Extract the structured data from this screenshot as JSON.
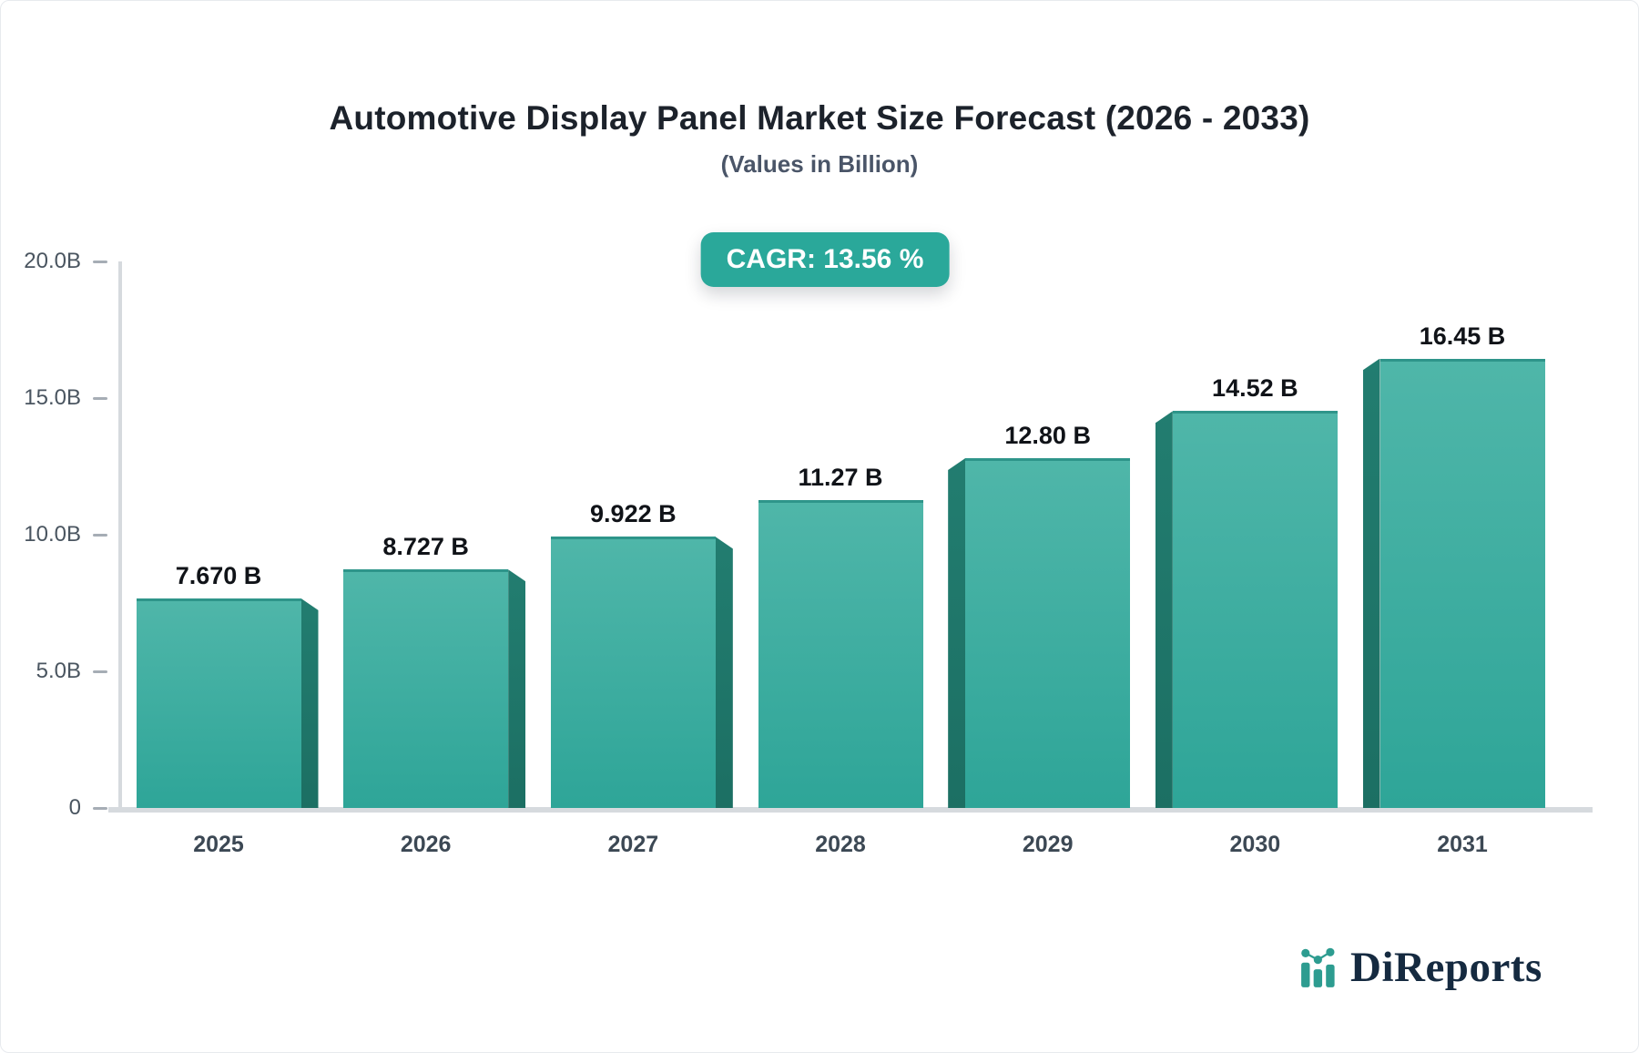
{
  "header": {
    "title": "Automotive Display Panel Market Size Forecast (2026 - 2033)",
    "subtitle": "(Values in Billion)",
    "cagr_badge": "CAGR: 13.56 %"
  },
  "chart_data": {
    "type": "bar",
    "title": "Automotive Display Panel Market Size Forecast (2026 - 2033)",
    "subtitle": "(Values in Billion)",
    "annotation": "CAGR: 13.56 %",
    "categories": [
      "2025",
      "2026",
      "2027",
      "2028",
      "2029",
      "2030",
      "2031"
    ],
    "values": [
      7.67,
      8.727,
      9.922,
      11.27,
      12.8,
      14.52,
      16.45
    ],
    "value_labels": [
      "7.670 B",
      "8.727 B",
      "9.922 B",
      "11.27 B",
      "12.80 B",
      "14.52 B",
      "16.45 B"
    ],
    "xlabel": "",
    "ylabel": "",
    "ylim": [
      0,
      20
    ],
    "yticks": [
      {
        "value": 20,
        "label": "20.0B"
      },
      {
        "value": 15,
        "label": "15.0B"
      },
      {
        "value": 10,
        "label": "10.0B"
      },
      {
        "value": 5,
        "label": "5.0B"
      },
      {
        "value": 0,
        "label": "0"
      }
    ],
    "grid": false,
    "legend": null,
    "style": "3d-bars, side face toward center bar; bars left of center show right side face, bars right of center show left side face",
    "colors": {
      "bar_front_top": "#4FB6A9",
      "bar_front_bottom": "#2EA598",
      "bar_top_edge": "#2E958A",
      "bar_side": "#1F7A6D",
      "badge_background": "#2AA89A",
      "badge_text": "#FFFFFF",
      "axis": "#D6DADE",
      "tick_text": "#4A5560",
      "category_text": "#3C4854",
      "value_text": "#101318",
      "logo_navy": "#152A40",
      "logo_teal": "#2D9C90"
    }
  },
  "footer": {
    "brand": "DiReports"
  }
}
